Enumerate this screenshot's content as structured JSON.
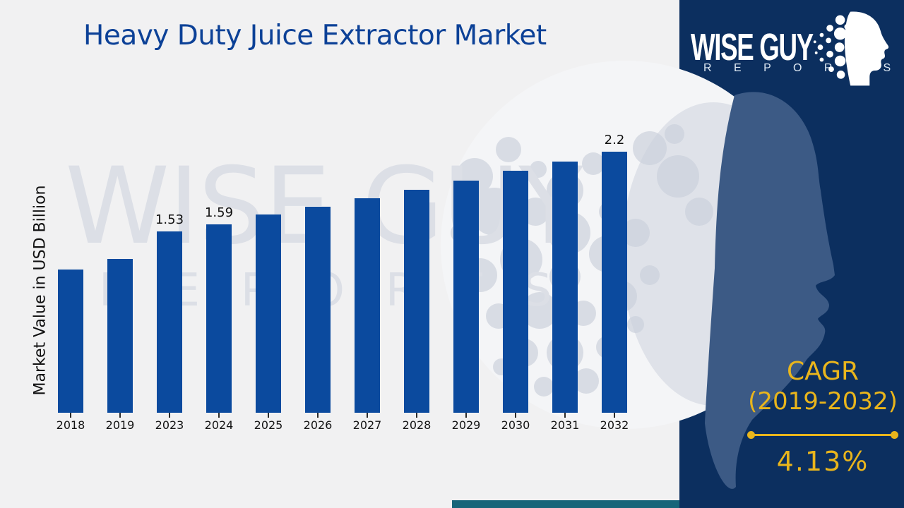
{
  "title": "Heavy Duty Juice Extractor Market",
  "y_axis_label": "Market Value in USD Billion",
  "watermark": {
    "line1": "WISE GUY",
    "line2": "REPORTS"
  },
  "logo": {
    "line1": "WISE GUY",
    "line2": "R E P O R T S"
  },
  "cagr": {
    "label": "CAGR",
    "range": "(2019-2032)",
    "value": "4.13%"
  },
  "colors": {
    "background": "#f1f1f2",
    "brand_navy": "#0c2f5f",
    "bar_blue": "#0b4a9e",
    "title_blue": "#0c4197",
    "accent_gold": "#e9b51c",
    "teal_accent": "#176579",
    "watermark_gray": "#dcdfe6",
    "circle_gray": "#f4f5f7"
  },
  "chart_data": {
    "type": "bar",
    "title": "Heavy Duty Juice Extractor Market",
    "xlabel": "",
    "ylabel": "Market Value in USD Billion",
    "categories": [
      "2018",
      "2019",
      "2023",
      "2024",
      "2025",
      "2026",
      "2027",
      "2028",
      "2029",
      "2030",
      "2031",
      "2032"
    ],
    "values": [
      1.21,
      1.3,
      1.53,
      1.59,
      1.67,
      1.74,
      1.81,
      1.88,
      1.96,
      2.04,
      2.12,
      2.2
    ],
    "data_labels": [
      "",
      "",
      "1.53",
      "1.59",
      "",
      "",
      "",
      "",
      "",
      "",
      "",
      "2.2"
    ],
    "bar_color": "#0b4a9e",
    "ylim": [
      0,
      2.4
    ],
    "grid": false,
    "legend": false,
    "unit": "USD Billion"
  }
}
